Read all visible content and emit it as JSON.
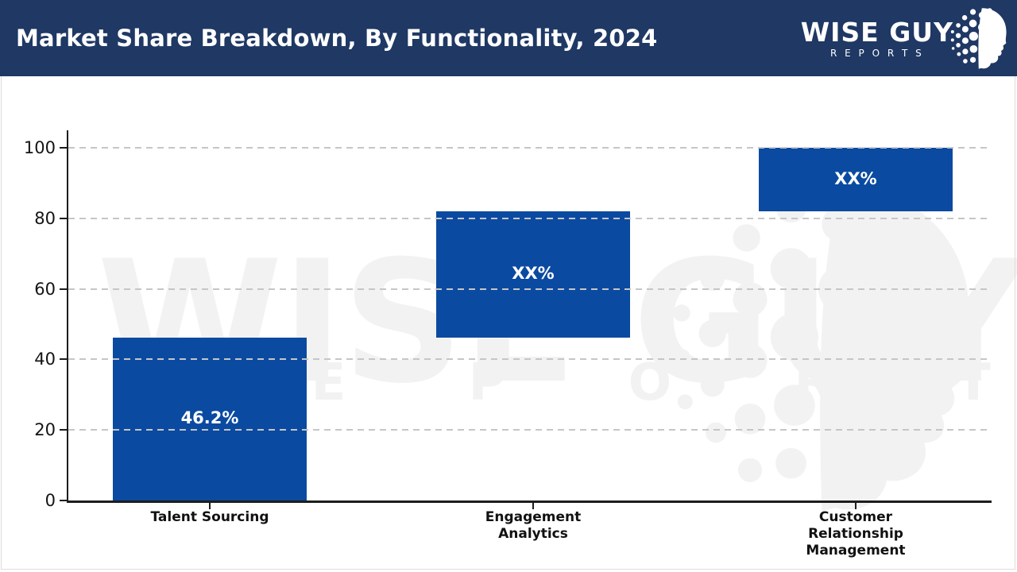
{
  "header": {
    "title": "Market Share Breakdown, By Functionality, 2024",
    "logo": {
      "wordmark": "WISE GUY",
      "subtext": "R E P O R T S"
    }
  },
  "watermark": {
    "wordmark": "WISE GUY",
    "subtext": "R E P O R T S"
  },
  "chart_data": {
    "type": "bar",
    "subtype": "waterfall-breakdown",
    "title": "Market Share Breakdown, By Functionality, 2024",
    "categories": [
      "Talent Sourcing",
      "Engagement Analytics",
      "Customer Relationship Management"
    ],
    "category_lines": [
      [
        "Talent Sourcing"
      ],
      [
        "Engagement",
        "Analytics"
      ],
      [
        "Customer",
        "Relationship",
        "Management"
      ]
    ],
    "segments": [
      {
        "category": "Talent Sourcing",
        "start": 0,
        "end": 46.2,
        "value": 46.2,
        "label": "46.2%"
      },
      {
        "category": "Engagement Analytics",
        "start": 46.2,
        "end": 82,
        "value": 35.8,
        "label": "XX%"
      },
      {
        "category": "Customer Relationship Management",
        "start": 82,
        "end": 100,
        "value": 18,
        "label": "XX%"
      }
    ],
    "bar_labels": [
      "46.2%",
      "XX%",
      "XX%"
    ],
    "ylim": [
      0,
      100
    ],
    "yticks": [
      0,
      20,
      40,
      60,
      80,
      100
    ],
    "xlabel": "",
    "ylabel": "",
    "legend": "none",
    "grid": "horizontal-dashed-over-bars"
  },
  "colors": {
    "header_bg": "#1F3864",
    "bar": "#0B4AA1",
    "grid": "#C6C6C6",
    "axis": "#1C1C1C",
    "watermark": "#F2F2F2",
    "bar_label": "#FFFFFF"
  }
}
